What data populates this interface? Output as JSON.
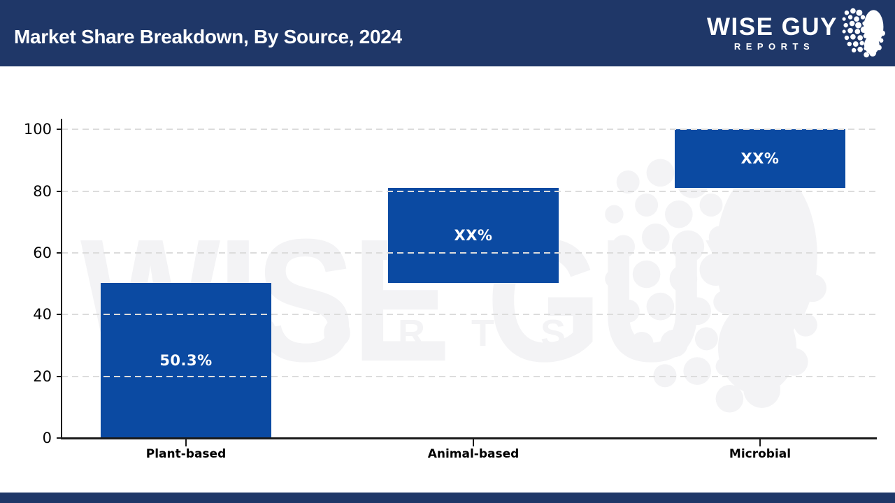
{
  "header": {
    "title": "Market Share Breakdown, By Source, 2024",
    "logo": {
      "line1": "WISE GUY",
      "line2": "REPORTS"
    }
  },
  "watermark": {
    "line1": "WISE GUY",
    "line2": "REPORTS"
  },
  "colors": {
    "header_bg": "#1F3768",
    "footer_bg": "#1F3768",
    "bar_fill": "#0B4AA2",
    "bar_label": "#FFFFFF",
    "gridline": "#DCDCDC",
    "axis": "#1A1A1A",
    "watermark": "#F3F3F5"
  },
  "chart_data": {
    "type": "bar",
    "subtype": "waterfall-floating-bars",
    "title": "Market Share Breakdown, By Source, 2024",
    "categories": [
      "Plant-based",
      "Animal-based",
      "Microbial"
    ],
    "bars": [
      {
        "category": "Plant-based",
        "start": 0,
        "end": 50.3,
        "value": 50.3,
        "label": "50.3%"
      },
      {
        "category": "Animal-based",
        "start": 50.3,
        "end": 81.0,
        "value": 30.7,
        "label": "XX%"
      },
      {
        "category": "Microbial",
        "start": 81.0,
        "end": 100.0,
        "value": 19.0,
        "label": "XX%"
      }
    ],
    "xlabel": "",
    "ylabel": "",
    "ylim": [
      0,
      103.5
    ],
    "yticks": [
      0,
      20,
      40,
      60,
      80,
      100
    ],
    "grid": "horizontal-dashed",
    "legend": "none"
  }
}
